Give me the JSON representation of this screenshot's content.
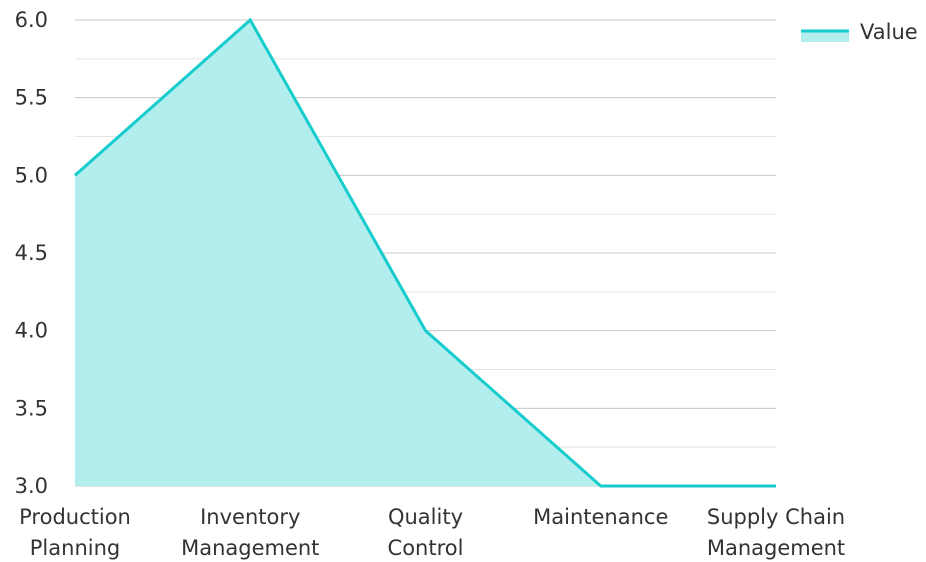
{
  "chart_data": {
    "type": "area",
    "categories": [
      [
        "Production",
        "Planning"
      ],
      [
        "Inventory",
        "Management"
      ],
      [
        "Quality",
        "Control"
      ],
      [
        "Maintenance"
      ],
      [
        "Supply Chain",
        "Management"
      ]
    ],
    "series": [
      {
        "name": "Value",
        "values": [
          5,
          6,
          4,
          3,
          3
        ]
      }
    ],
    "y_ticks": [
      "3.0",
      "3.5",
      "4.0",
      "4.5",
      "5.0",
      "5.5",
      "6.0"
    ],
    "ylim": [
      3,
      6
    ],
    "grid": true,
    "legend_position": "top-right",
    "colors": {
      "line": "#17cccc",
      "fill": "#b2eeee",
      "grid": "#c8c8c8",
      "grid_minor": "#e4e4e4",
      "axis": "#aaaaaa",
      "text": "#333333"
    }
  }
}
